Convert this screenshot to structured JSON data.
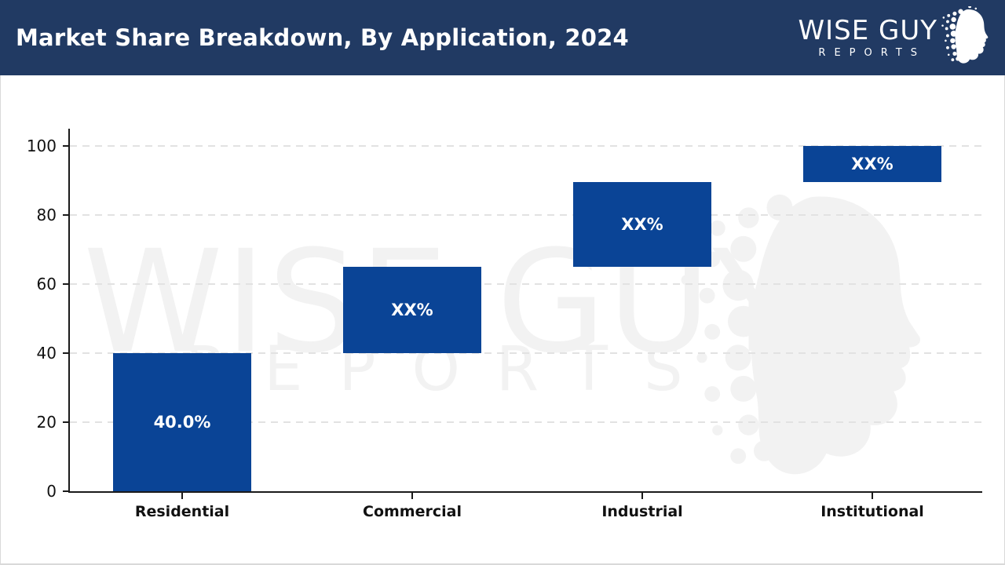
{
  "header": {
    "title": "Market Share Breakdown, By Application, 2024",
    "logo_line1": "WISE GUY",
    "logo_line2": "REPORTS"
  },
  "watermark": {
    "line1": "WISE GUY",
    "line2": "REPORTS"
  },
  "colors": {
    "header_bg": "#213a63",
    "bar": "#0a4496",
    "axis": "#1a1a1a",
    "grid": "#e2e2e2",
    "watermark": "#f2f2f2",
    "bar_label_text": "#ffffff",
    "title_text": "#ffffff"
  },
  "chart_data": {
    "type": "bar",
    "subtype": "waterfall",
    "title": "Market Share Breakdown, By Application, 2024",
    "categories": [
      "Residential",
      "Commercial",
      "Industrial",
      "Institutional"
    ],
    "segments": [
      {
        "category": "Residential",
        "start": 0,
        "end": 40,
        "label": "40.0%"
      },
      {
        "category": "Commercial",
        "start": 40,
        "end": 65,
        "label": "XX%"
      },
      {
        "category": "Industrial",
        "start": 65,
        "end": 89.5,
        "label": "XX%"
      },
      {
        "category": "Institutional",
        "start": 89.5,
        "end": 100,
        "label": "XX%"
      }
    ],
    "yticks": [
      0,
      20,
      40,
      60,
      80,
      100
    ],
    "ylim": [
      0,
      105
    ],
    "xlabel": "",
    "ylabel": "",
    "grid": "horizontal-dashed",
    "legend": "none"
  }
}
